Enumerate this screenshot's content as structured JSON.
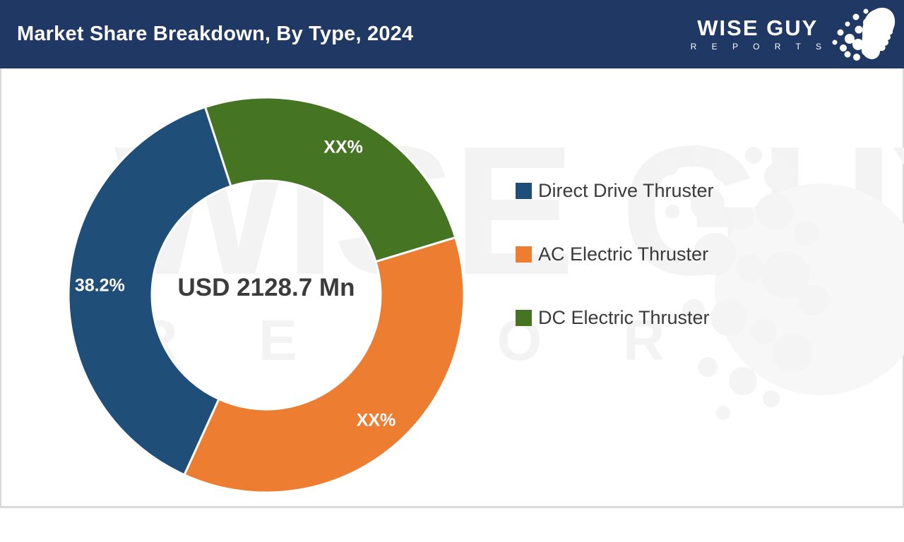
{
  "header": {
    "title": "Market Share Breakdown, By Type, 2024",
    "background": "#203864",
    "logo": {
      "line1": "WISE GUY",
      "line2": "R E P O R T S"
    }
  },
  "watermark": {
    "line1": "WISE GUY",
    "line2": "R E P O R T S"
  },
  "chart_data": {
    "type": "pie",
    "subtype": "donut",
    "title": "Market Share Breakdown, By Type, 2024",
    "center_label": "USD 2128.7 Mn",
    "rotation_deg": -18,
    "inner_radius_ratio": 0.58,
    "legend_position": "right",
    "series": [
      {
        "name": "Direct Drive Thruster",
        "value": 38.2,
        "display_label": "38.2%",
        "color": "#1F4E79"
      },
      {
        "name": "AC Electric Thruster",
        "value": 36.5,
        "display_label": "XX%",
        "color": "#ED7D31"
      },
      {
        "name": "DC Electric Thruster",
        "value": 25.3,
        "display_label": "XX%",
        "color": "#457423"
      }
    ]
  },
  "colors": {
    "header_bg": "#203864",
    "page_border": "#d9d9d9",
    "watermark": "#f3f3f3",
    "center_text": "#3b3b3b",
    "legend_text": "#3a3a3a"
  }
}
